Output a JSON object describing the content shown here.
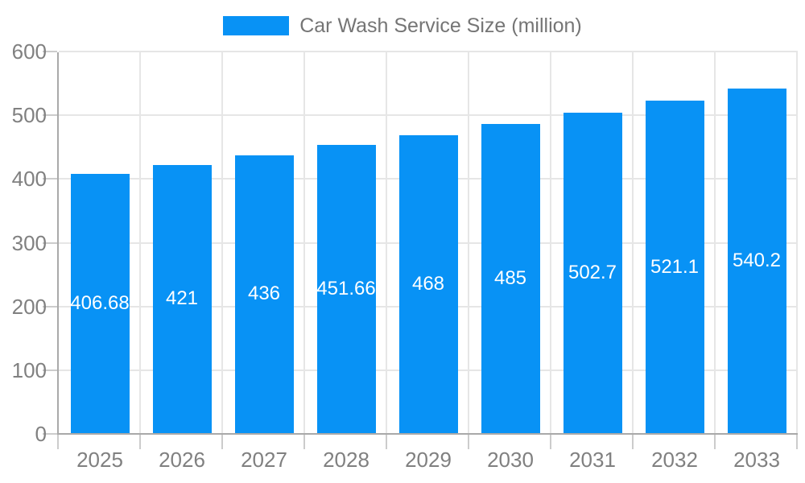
{
  "chart_data": {
    "type": "bar",
    "title": "Car Wash Service Size (million)",
    "legend": [
      "Car Wash Service Size (million)"
    ],
    "legend_position": "top-center",
    "categories": [
      "2025",
      "2026",
      "2027",
      "2028",
      "2029",
      "2030",
      "2031",
      "2032",
      "2033"
    ],
    "values": [
      406.68,
      421,
      436,
      451.66,
      468,
      485,
      502.7,
      521.1,
      540.2
    ],
    "value_labels": [
      "406.68",
      "421",
      "436",
      "451.66",
      "468",
      "485",
      "502.7",
      "521.1",
      "540.2"
    ],
    "xlabel": "",
    "ylabel": "",
    "ylim": [
      0,
      600
    ],
    "y_ticks": [
      0,
      100,
      200,
      300,
      400,
      500,
      600
    ],
    "grid": true,
    "colors": {
      "bar": "#0892f5",
      "grid": "#e6e6e6",
      "axis": "#a9a9a9",
      "tick": "#cccccc",
      "tick_text": "#808080",
      "legend_text": "#757575",
      "value_text": "#ffffff"
    }
  }
}
